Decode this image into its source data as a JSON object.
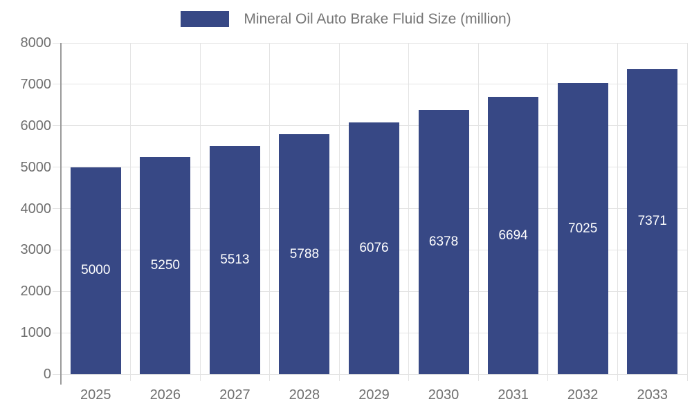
{
  "chart_data": {
    "type": "bar",
    "title": "",
    "legend_label": "Mineral Oil Auto Brake Fluid Size (million)",
    "legend_position": "top",
    "categories": [
      "2025",
      "2026",
      "2027",
      "2028",
      "2029",
      "2030",
      "2031",
      "2032",
      "2033"
    ],
    "values": [
      5000,
      5250,
      5513,
      5788,
      6076,
      6378,
      6694,
      7025,
      7371
    ],
    "xlabel": "",
    "ylabel": "",
    "ylim": [
      0,
      8000
    ],
    "ytick_interval": 1000,
    "ytick_labels": [
      "0",
      "1000",
      "2000",
      "3000",
      "4000",
      "5000",
      "6000",
      "7000",
      "8000"
    ],
    "grid": true,
    "value_labels_shown": true,
    "colors": {
      "bar": "#374885",
      "grid": "#e3e3e3",
      "axis_line": "#9a9a9a",
      "tick_text": "#6f6f6f",
      "legend_text": "#757575",
      "value_label_text": "#ffffff",
      "background": "#ffffff"
    }
  }
}
